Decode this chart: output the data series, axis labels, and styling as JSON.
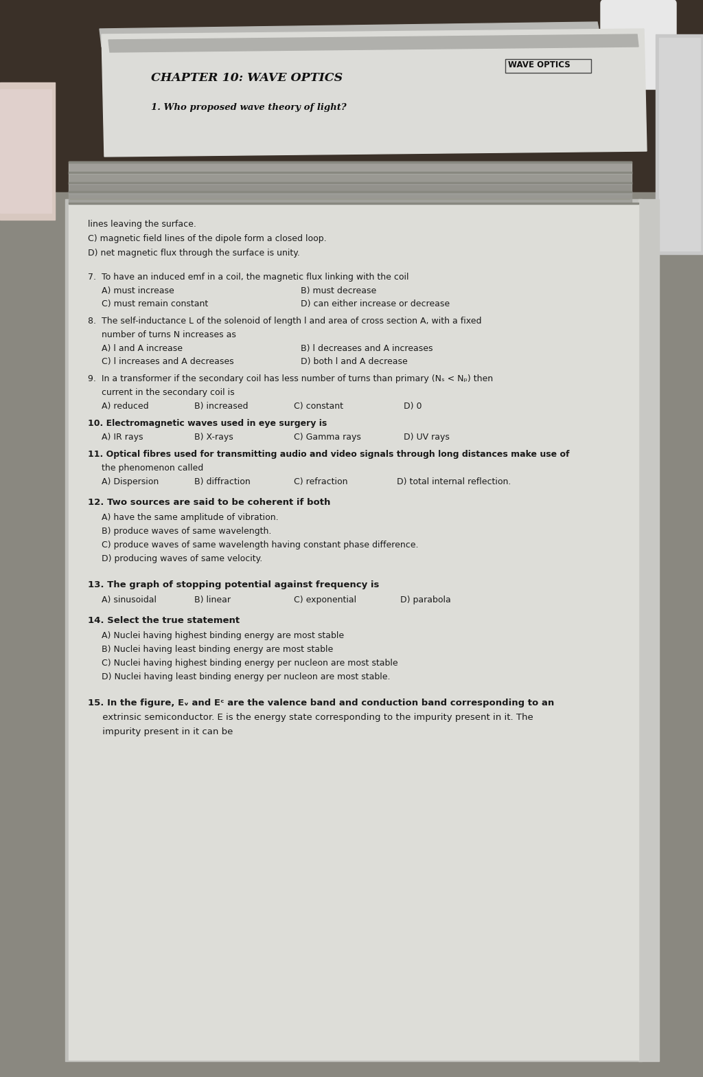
{
  "text_color": "#1a1a1a",
  "chapter_header": "CHAPTER 10: WAVE OPTICS",
  "wave_optics_label": "WAVE OPTICS",
  "q1_text": "1. Who proposed wave theory of light?",
  "continuation_lines": [
    "lines leaving the surface.",
    "C) magnetic field lines of the dipole form a closed loop.",
    "D) net magnetic flux through the surface is unity."
  ],
  "q7_text": "7.  To have an induced emf in a coil, the magnetic flux linking with the coil",
  "q7_options": [
    [
      "A) must increase",
      "B) must decrease"
    ],
    [
      "C) must remain constant",
      "D) can either increase or decrease"
    ]
  ],
  "q8_text": "8.  The self-inductance L of the solenoid of length l and area of cross section A, with a fixed",
  "q8_line2": "     number of turns N increases as",
  "q8_options": [
    [
      "A) l and A increase",
      "B) l decreases and A increases"
    ],
    [
      "C) l increases and A decreases",
      "D) both l and A decrease"
    ]
  ],
  "q9_text": "9.  In a transformer if the secondary coil has less number of turns than primary (Nₛ < Nₚ) then",
  "q9_line2": "     current in the secondary coil is",
  "q9_options": [
    "A) reduced",
    "B) increased",
    "C) constant",
    "D) 0"
  ],
  "q10_text": "10. Electromagnetic waves used in eye surgery is",
  "q10_options": [
    "A) IR rays",
    "B) X-rays",
    "C) Gamma rays",
    "D) UV rays"
  ],
  "q11_text": "11. Optical fibres used for transmitting audio and video signals through long distances make use of",
  "q11_line2": "     the phenomenon called",
  "q11_options": [
    "A) Dispersion",
    "B) diffraction",
    "C) refraction",
    "D) total internal reflection."
  ],
  "q12_text": "12. Two sources are said to be coherent if both",
  "q12_options": [
    "A) have the same amplitude of vibration.",
    "B) produce waves of same wavelength.",
    "C) produce waves of same wavelength having constant phase difference.",
    "D) producing waves of same velocity."
  ],
  "q13_text": "13. The graph of stopping potential against frequency is",
  "q13_options": [
    "A) sinusoidal",
    "B) linear",
    "C) exponential",
    "D) parabola"
  ],
  "q14_text": "14. Select the true statement",
  "q14_options": [
    "A) Nuclei having highest binding energy are most stable",
    "B) Nuclei having least binding energy are most stable",
    "C) Nuclei having highest binding energy per nucleon are most stable",
    "D) Nuclei having least binding energy per nucleon are most stable."
  ],
  "q15_text": "15. In the figure, Eᵥ and Eᶜ are the valence band and conduction band corresponding to an",
  "q15_line2": "     extrinsic semiconductor. E is the energy state corresponding to the impurity present in it. The",
  "q15_line3": "     impurity present in it can be",
  "bg_top_color": "#5a4a3a",
  "bg_bottom_color": "#7a7a7a",
  "paper_main_color": "#d8d8d5",
  "paper_chapter_color": "#ddddd8",
  "paper_content_color": "#d5d5d0",
  "inner_paper_color": "#e0e0dc"
}
